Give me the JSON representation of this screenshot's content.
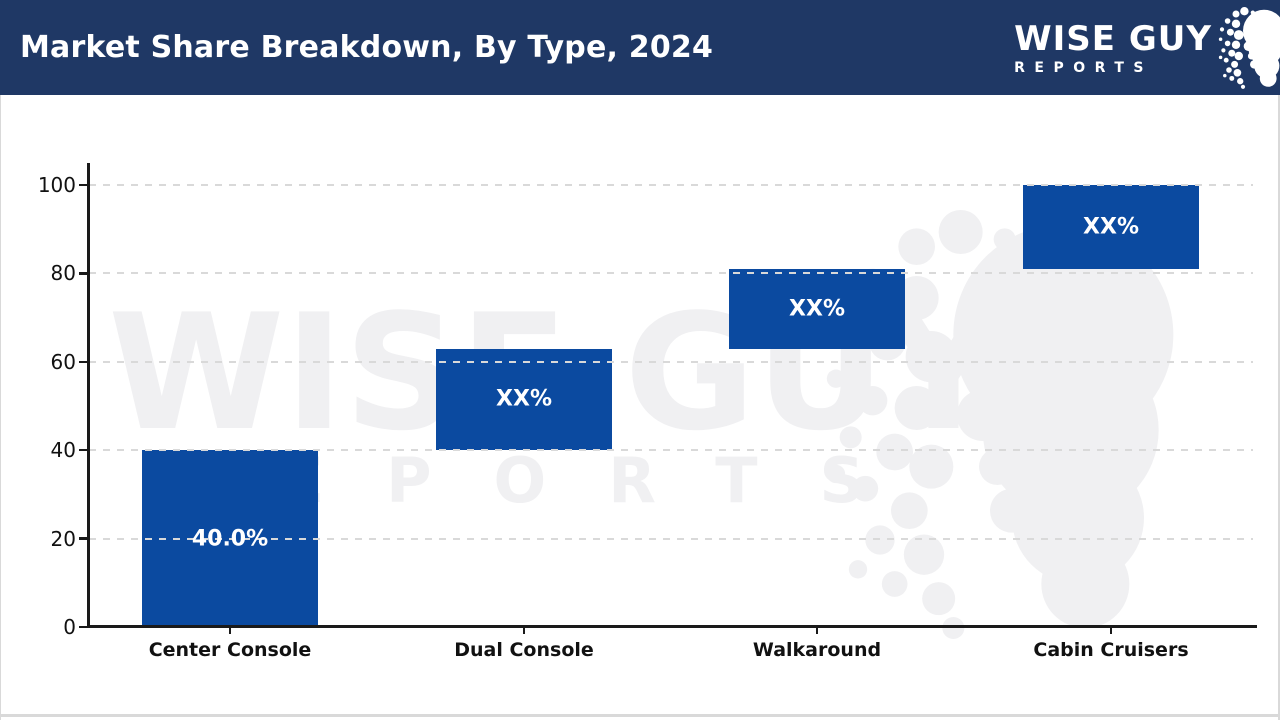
{
  "header": {
    "title": "Market Share Breakdown, By Type, 2024",
    "logo": {
      "name": "WISE GUY",
      "subtitle": "REPORTS"
    }
  },
  "watermark": {
    "line1": "WISE GUY",
    "line2": "REPORTS"
  },
  "chart_data": {
    "type": "bar",
    "subtype": "floating waterfall segments (each bar starts where the previous ends)",
    "title": "Market Share Breakdown, By Type, 2024",
    "categories": [
      "Center Console",
      "Dual Console",
      "Walkaround",
      "Cabin Cruisers"
    ],
    "bars": [
      {
        "category": "Center Console",
        "start": 0,
        "end": 40,
        "label": "40.0%"
      },
      {
        "category": "Dual Console",
        "start": 40,
        "end": 63,
        "label": "XX%"
      },
      {
        "category": "Walkaround",
        "start": 63,
        "end": 81,
        "label": "XX%"
      },
      {
        "category": "Cabin Cruisers",
        "start": 81,
        "end": 100,
        "label": "XX%"
      }
    ],
    "xlabel": "",
    "ylabel": "",
    "ylim": [
      0,
      100
    ],
    "yticks": [
      0,
      20,
      40,
      60,
      80,
      100
    ],
    "grid": "horizontal dashed",
    "legend": "none",
    "bar_color": "#0b4aa0",
    "value_label_color": "#ffffff"
  },
  "colors": {
    "header_bg": "#1f3865",
    "bar": "#0b4aa0",
    "grid": "#d9d9d9",
    "axis": "#1a1a1a",
    "watermark": "#f0f0f2",
    "title_text": "#ffffff"
  }
}
